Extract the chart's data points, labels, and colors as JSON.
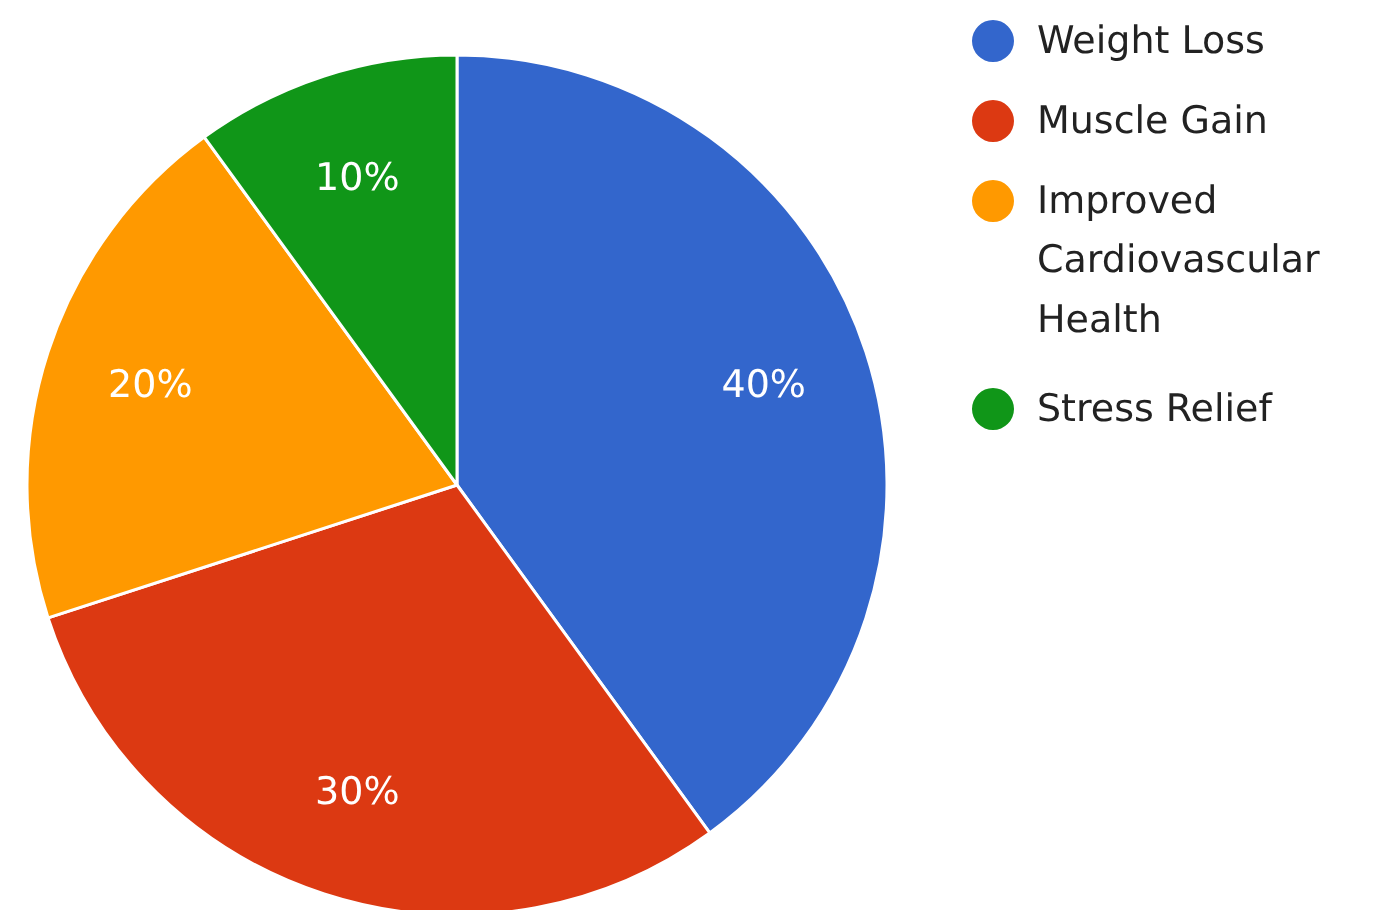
{
  "chart_data": {
    "type": "pie",
    "categories": [
      "Weight Loss",
      "Muscle Gain",
      "Improved Cardiovascular Health",
      "Stress Relief"
    ],
    "values": [
      40,
      30,
      20,
      10
    ],
    "colors": [
      "#3366cc",
      "#dc3912",
      "#ff9900",
      "#109618"
    ],
    "value_labels": [
      "40%",
      "30%",
      "20%",
      "10%"
    ],
    "legend": "right"
  }
}
